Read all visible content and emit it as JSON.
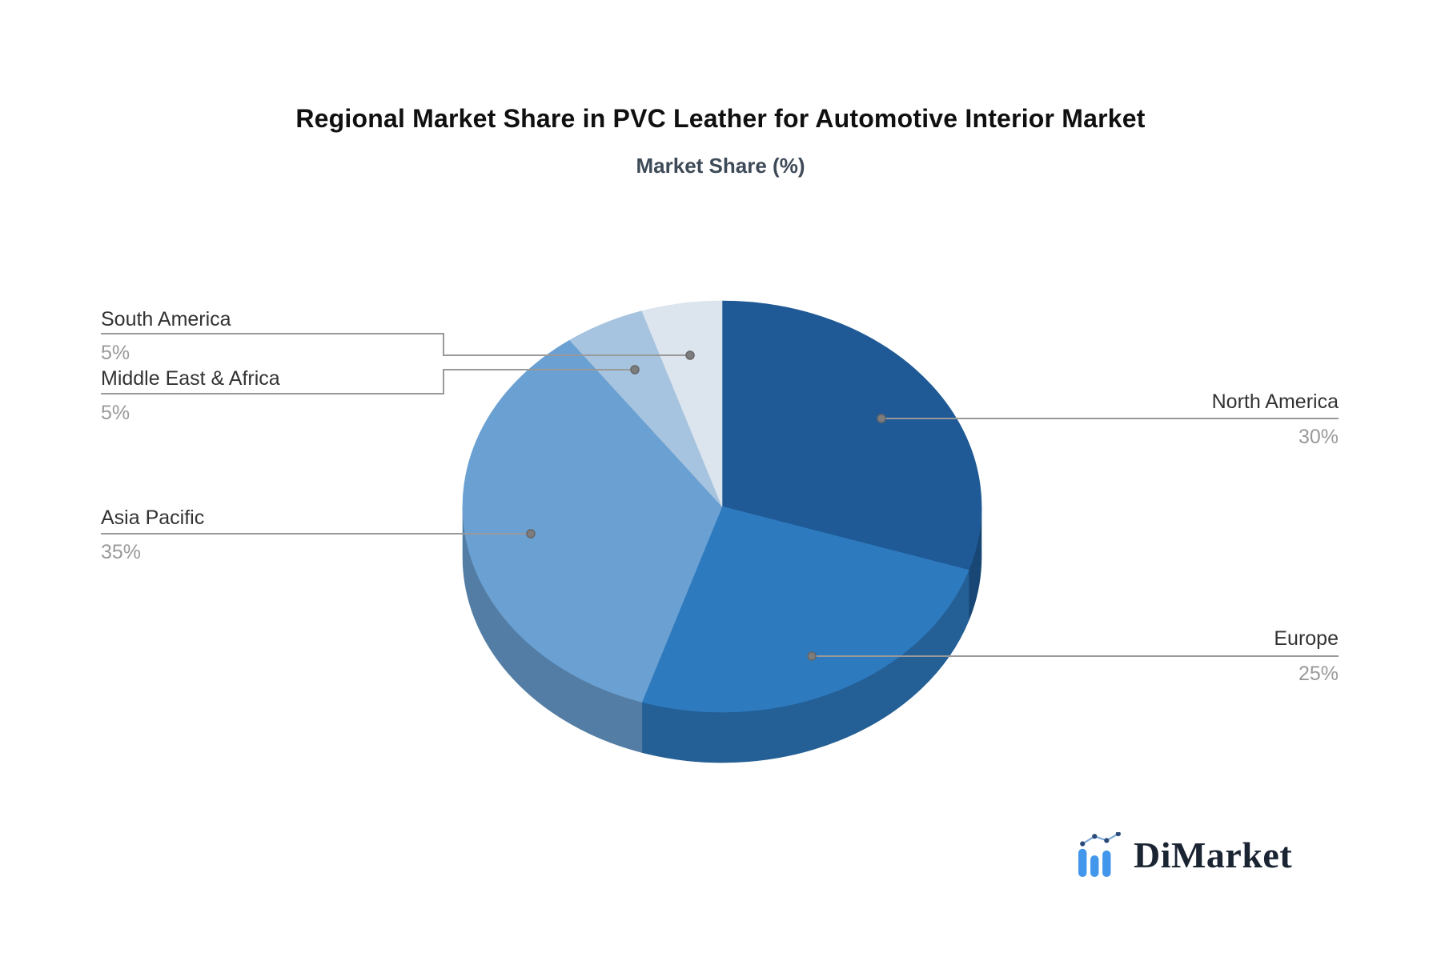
{
  "header": {
    "title": "Regional Market Share in PVC Leather for Automotive Interior Market",
    "subtitle": "Market Share (%)"
  },
  "chart_data": {
    "type": "pie",
    "style": "3d",
    "title": "Regional Market Share in PVC Leather for Automotive Interior Market",
    "subtitle": "Market Share (%)",
    "unit": "%",
    "start_angle_deg": 0,
    "clockwise": true,
    "legend_position": "callout-labels",
    "series": [
      {
        "label": "North America",
        "value": 30,
        "pct_label": "30%",
        "color": "#1f5a96",
        "callout_side": "right"
      },
      {
        "label": "Europe",
        "value": 25,
        "pct_label": "25%",
        "color": "#2e7abf",
        "callout_side": "right"
      },
      {
        "label": "Asia Pacific",
        "value": 35,
        "pct_label": "35%",
        "color": "#6aa0d2",
        "callout_side": "left"
      },
      {
        "label": "Middle East & Africa",
        "value": 5,
        "pct_label": "5%",
        "color": "#a6c3df",
        "callout_side": "left"
      },
      {
        "label": "South America",
        "value": 5,
        "pct_label": "5%",
        "color": "#dce4ed",
        "callout_side": "left"
      }
    ]
  },
  "logo": {
    "text": "DiMarket"
  },
  "colors": {
    "leader_line": "#999999",
    "callout_dot": "#7d7d7d",
    "label_text": "#333333",
    "pct_text": "#9a9a9a",
    "subtitle_text": "#3e4a58",
    "logo_text": "#1b2433",
    "logo_icon_blue": "#4296ec",
    "logo_icon_navy": "#2b4a7a"
  }
}
